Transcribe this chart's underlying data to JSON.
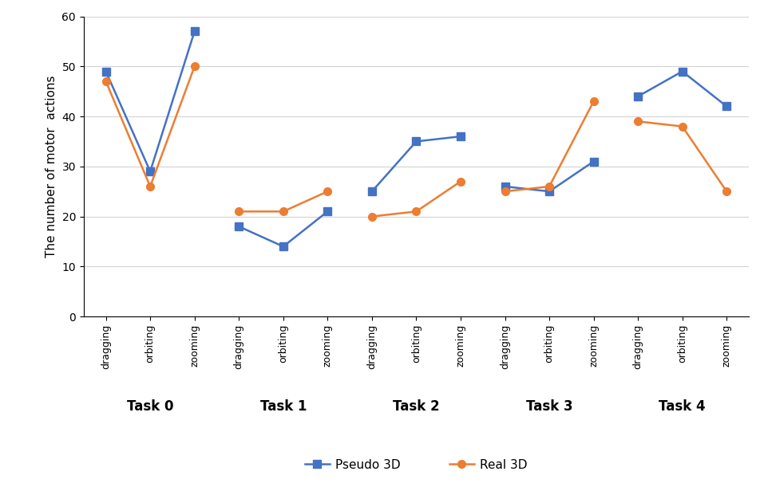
{
  "pseudo_3d": [
    49,
    29,
    57,
    18,
    14,
    21,
    25,
    35,
    36,
    26,
    25,
    31,
    44,
    49,
    42
  ],
  "real_3d": [
    47,
    26,
    50,
    21,
    21,
    25,
    20,
    21,
    27,
    25,
    26,
    43,
    39,
    38,
    25
  ],
  "pseudo_color": "#4472C4",
  "real_color": "#ED7D31",
  "ylabel": "The number of motor  actions",
  "ylim": [
    0,
    60
  ],
  "yticks": [
    0,
    10,
    20,
    30,
    40,
    50,
    60
  ],
  "task_labels": [
    "Task 0",
    "Task 1",
    "Task 2",
    "Task 3",
    "Task 4"
  ],
  "sub_labels": [
    "dragging",
    "orbiting",
    "zooming"
  ],
  "legend_pseudo": "Pseudo 3D",
  "legend_real": "Real 3D",
  "marker_pseudo": "s",
  "marker_real": "o",
  "linewidth": 1.8,
  "markersize": 7,
  "tick_fontsize": 9,
  "task_fontsize": 12,
  "ylabel_fontsize": 11
}
